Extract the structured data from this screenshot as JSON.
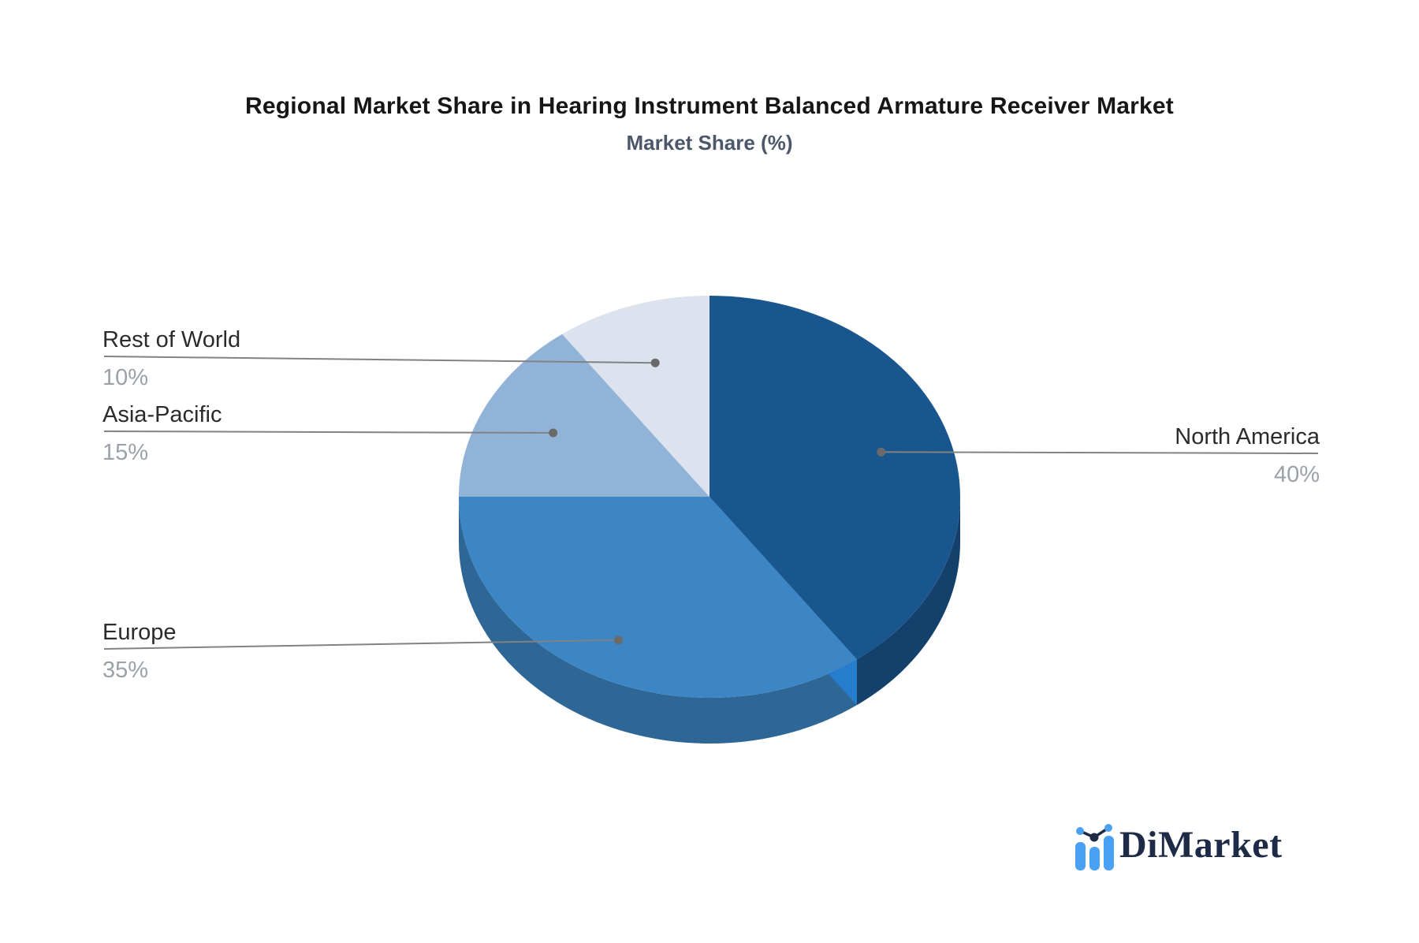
{
  "header": {
    "title": "Regional Market Share in Hearing Instrument Balanced Armature Receiver Market",
    "subtitle": "Market Share (%)"
  },
  "chart_data": {
    "type": "pie",
    "style": "pie3d",
    "title": "Regional Market Share in Hearing Instrument Balanced Armature Receiver Market",
    "subtitle": "Market Share (%)",
    "unit": "%",
    "start_angle_deg": -90,
    "clockwise": true,
    "legend_position": "callout-labels",
    "categories": [
      "North America",
      "Europe",
      "Asia-Pacific",
      "Rest of World"
    ],
    "values": [
      40,
      35,
      15,
      10
    ],
    "labels": [
      {
        "name": "North America",
        "value_label": "40%",
        "side": "right"
      },
      {
        "name": "Europe",
        "value_label": "35%",
        "side": "left"
      },
      {
        "name": "Asia-Pacific",
        "value_label": "15%",
        "side": "left"
      },
      {
        "name": "Rest of World",
        "value_label": "10%",
        "side": "left"
      }
    ],
    "colors": [
      "#1a568e",
      "#3c86c6",
      "#90b3d7",
      "#dce3ee"
    ],
    "leader_line_color": "#828282",
    "leader_dot_color": "#6a6a6a"
  },
  "branding": {
    "logo_text": "DiMarket",
    "logo_icon": "bar-line-chart-icon",
    "text_color": "#1e2b47",
    "icon_color": "#4aa0f2"
  }
}
